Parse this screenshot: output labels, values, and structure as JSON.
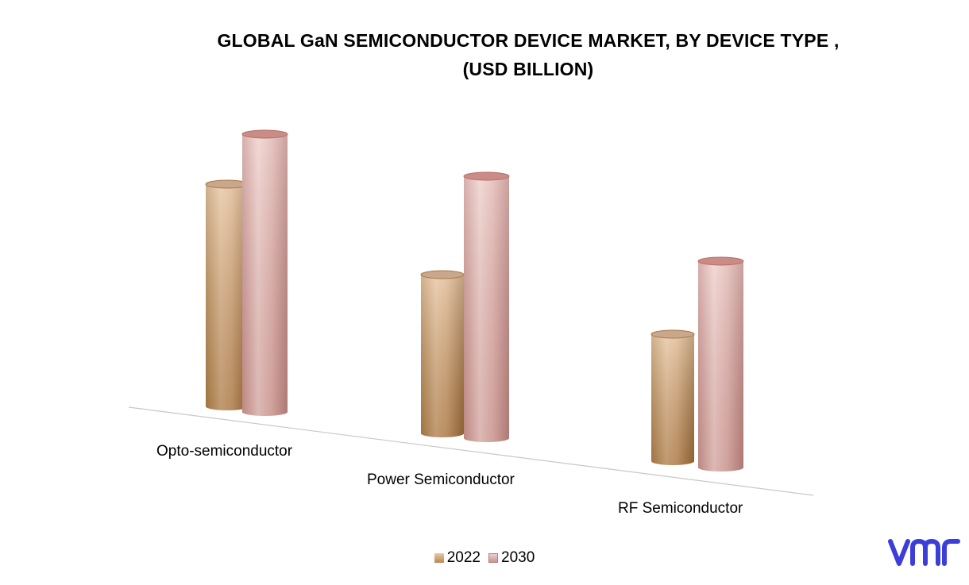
{
  "chart_data": {
    "type": "bar",
    "style": "3d-cylinder",
    "title": "GLOBAL GaN SEMICONDUCTOR DEVICE MARKET, BY DEVICE TYPE ,",
    "subtitle": "(USD BILLION)",
    "categories": [
      "Opto-semiconductor",
      "Power Semiconductor",
      "RF Semiconductor"
    ],
    "series": [
      {
        "name": "2022",
        "values": [
          2.8,
          2.0,
          1.6
        ],
        "color": "#d9b08a"
      },
      {
        "name": "2030",
        "values": [
          3.5,
          3.3,
          2.6
        ],
        "color": "#d9aaa6"
      }
    ],
    "ylim": [
      0,
      3.6
    ],
    "xlabel": "",
    "ylabel": "",
    "grid": false,
    "legend_position": "bottom"
  },
  "logo": {
    "text": "vmr",
    "color": "#3b3fd8"
  }
}
